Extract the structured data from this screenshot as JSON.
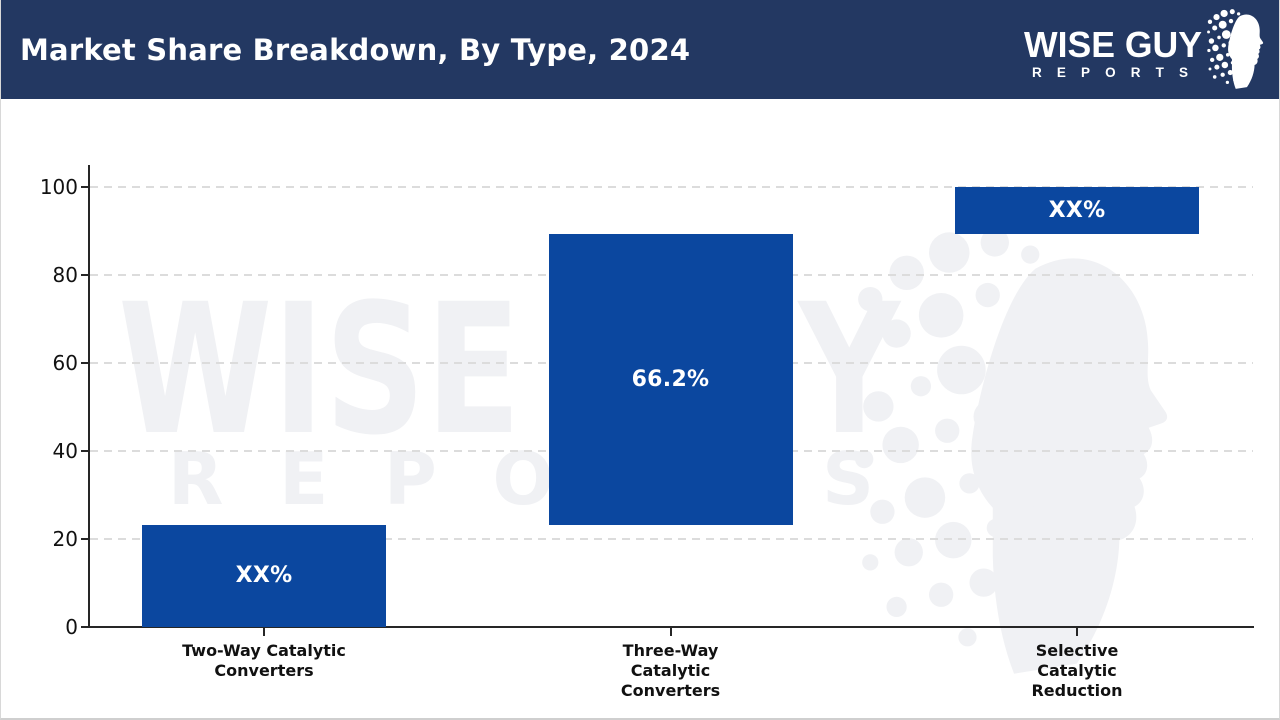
{
  "header": {
    "title": "Market Share Breakdown, By Type, 2024",
    "logo": {
      "line1": "WISE GUY",
      "line2": "REPORTS"
    }
  },
  "watermark": {
    "line1": "WISE GUY",
    "line2": "REPORTS"
  },
  "colors": {
    "header_bg": "#233862",
    "bar": "#0B479F",
    "bar_label": "#FFFFFF",
    "watermark": "#F0F1F4",
    "grid": "#DCDCDC",
    "axis": "#262626",
    "tick_text": "#111111"
  },
  "chart_data": {
    "type": "bar",
    "subtype": "waterfall-stacked-percentage",
    "title": "Market Share Breakdown, By Type, 2024",
    "categories": [
      "Two-Way Catalytic Converters",
      "Three-Way Catalytic Converters",
      "Selective Catalytic Reduction"
    ],
    "category_label_lines": [
      [
        "Two-Way Catalytic",
        "Converters"
      ],
      [
        "Three-Way",
        "Catalytic",
        "Converters"
      ],
      [
        "Selective",
        "Catalytic",
        "Reduction"
      ]
    ],
    "segments": [
      {
        "category": "Two-Way Catalytic Converters",
        "start": 0,
        "end": 23.2,
        "displayed_label": "XX%"
      },
      {
        "category": "Three-Way Catalytic Converters",
        "start": 23.2,
        "end": 89.4,
        "displayed_label": "66.2%"
      },
      {
        "category": "Selective Catalytic Reduction",
        "start": 89.4,
        "end": 100,
        "displayed_label": "XX%"
      }
    ],
    "y_ticks": [
      0,
      20,
      40,
      60,
      80,
      100
    ],
    "ylim": [
      0,
      105
    ],
    "xlabel": "",
    "ylabel": "",
    "grid": "horizontal-dashed",
    "legend": "none",
    "bar_color": "#0B479F",
    "bar_label_color": "#FFFFFF"
  }
}
